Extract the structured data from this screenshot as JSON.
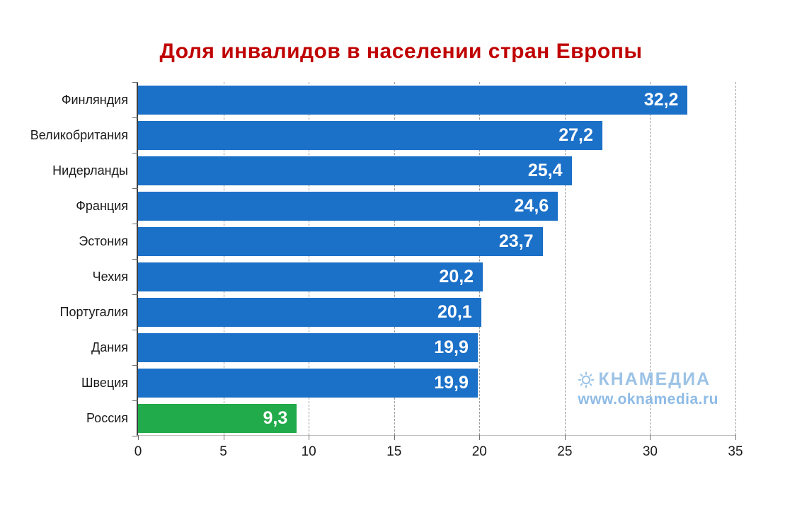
{
  "chart_data": {
    "type": "bar",
    "orientation": "horizontal",
    "title": "Доля инвалидов в населении стран Европы",
    "categories": [
      "Финляндия",
      "Великобритания",
      "Нидерланды",
      "Франция",
      "Эстония",
      "Чехия",
      "Португалия",
      "Дания",
      "Швеция",
      "Россия"
    ],
    "values": [
      32.2,
      27.2,
      25.4,
      24.6,
      23.7,
      20.2,
      20.1,
      19.9,
      19.9,
      9.3
    ],
    "value_labels": [
      "32,2",
      "27,2",
      "25,4",
      "24,6",
      "23,7",
      "20,2",
      "20,1",
      "19,9",
      "19,9",
      "9,3"
    ],
    "xlabel": "",
    "ylabel": "",
    "xlim": [
      0,
      35
    ],
    "xticks": [
      0,
      5,
      10,
      15,
      20,
      25,
      30,
      35
    ],
    "grid": "dashed-vertical",
    "legend": "none",
    "bar_color": "#1b70c8",
    "highlight_index": 9,
    "highlight_color": "#22ab4a",
    "value_label_color": "#ffffff"
  },
  "colors": {
    "title": "#c00000",
    "watermark": "#9cc3e6",
    "gridline": "#9a9a9a"
  },
  "watermark": {
    "brand_icon": "sun-icon",
    "brand_text": "КНАМЕДИА",
    "url": "www.oknamedia.ru"
  }
}
